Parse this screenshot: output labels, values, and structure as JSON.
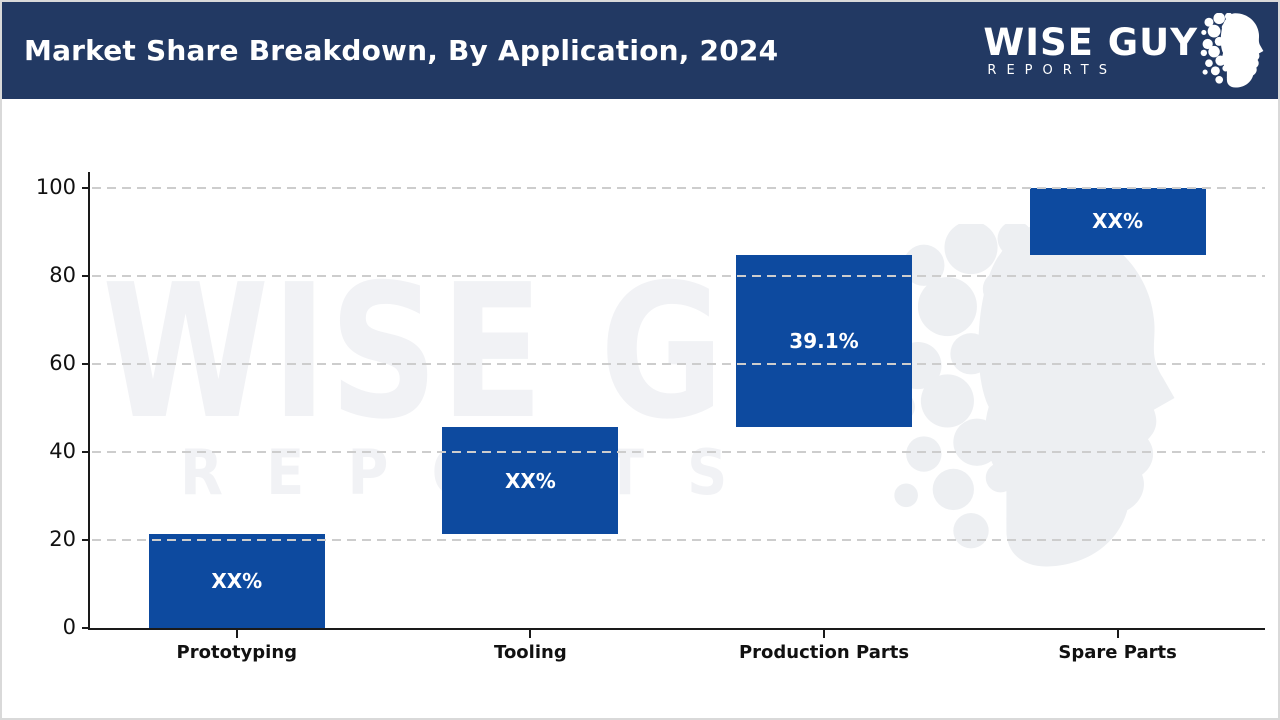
{
  "header": {
    "title": "Market Share Breakdown, By Application, 2024",
    "logo": {
      "line1": "WISE GUY",
      "line2": "REPORTS"
    }
  },
  "watermark": {
    "line1": "WISE GU",
    "line2": "REPORTS"
  },
  "colors": {
    "header_bg": "#223963",
    "bar": "#0d4a9f",
    "gridline": "#cdcdcd",
    "axis": "#1a1a1a",
    "watermark": "#f1f2f5",
    "label_on_bar": "#ffffff"
  },
  "chart_data": {
    "type": "bar",
    "subtype": "waterfall",
    "title": "Market Share Breakdown, By Application, 2024",
    "categories": [
      "Prototyping",
      "Tooling",
      "Production Parts",
      "Spare Parts"
    ],
    "series": [
      {
        "name": "Market Share",
        "segments": [
          {
            "category": "Prototyping",
            "start": 0,
            "end": 21.3,
            "label": "XX%"
          },
          {
            "category": "Tooling",
            "start": 21.3,
            "end": 45.7,
            "label": "XX%"
          },
          {
            "category": "Production Parts",
            "start": 45.7,
            "end": 84.8,
            "label": "39.1%"
          },
          {
            "category": "Spare Parts",
            "start": 84.8,
            "end": 100,
            "label": "XX%"
          }
        ]
      }
    ],
    "xlabel": "",
    "ylabel": "",
    "ylim": [
      0,
      100
    ],
    "yticks": [
      0,
      20,
      40,
      60,
      80,
      100
    ],
    "grid": "dashed-horizontal",
    "legend": "none"
  }
}
